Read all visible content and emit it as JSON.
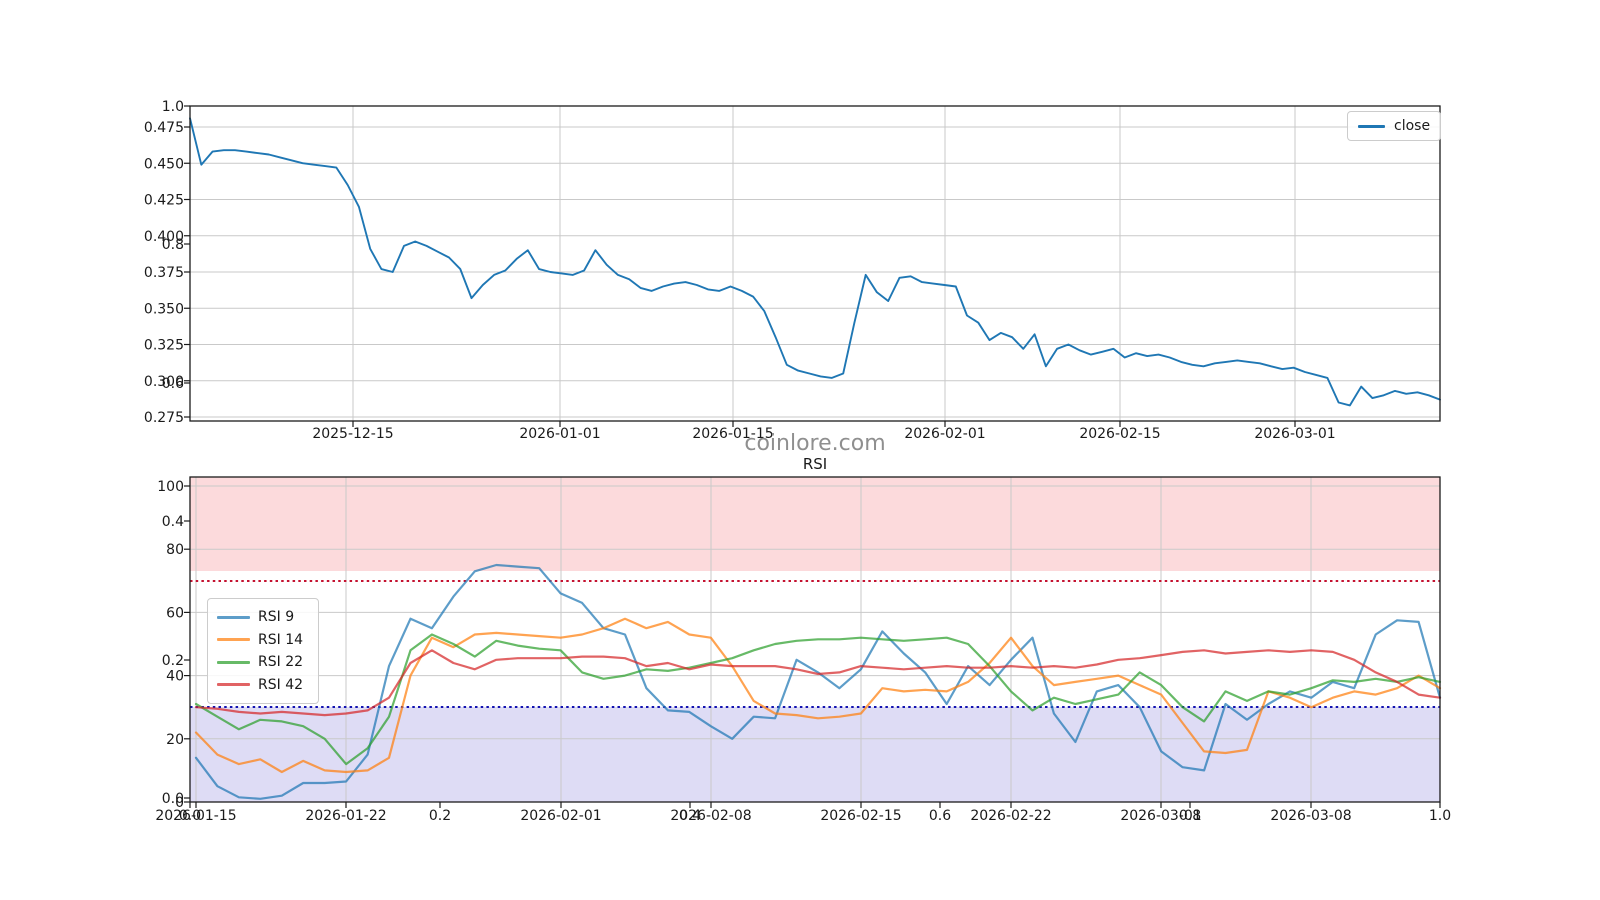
{
  "watermark": "coinlore.com",
  "colors": {
    "background": "#ffffff",
    "grid": "#c9c9c9",
    "spine": "#1b1b1b",
    "tick_text": "#1a1a1a",
    "watermark_text": "#8f8f8f",
    "overbought_band": "#fcdadc",
    "oversold_band": "#dedcf5",
    "overbought_line": "#c41230",
    "oversold_line": "#1212b0"
  },
  "phantom_axis": {
    "y_labels": [
      "1.0",
      "0.8",
      "0.6",
      "0.4",
      "0.2",
      "0.0"
    ],
    "x_labels": [
      "0.0",
      "0.2",
      "0.4",
      "0.6",
      "0.8",
      "1.0"
    ]
  },
  "chart_data": [
    {
      "type": "line",
      "title": "",
      "xlabel": "",
      "ylabel": "",
      "grid": true,
      "legend_position": "upper right",
      "ylim": [
        0.2723,
        0.4895
      ],
      "y_tick_labels": [
        "0.475",
        "0.450",
        "0.425",
        "0.400",
        "0.375",
        "0.350",
        "0.325",
        "0.300",
        "0.275"
      ],
      "x_tick_labels": [
        "2025-12-15",
        "2026-01-01",
        "2026-01-15",
        "2026-02-01",
        "2026-02-15",
        "2026-03-01"
      ],
      "series": [
        {
          "name": "close",
          "color": "#1f77b4",
          "values": [
            0.481,
            0.449,
            0.458,
            0.459,
            0.459,
            0.458,
            0.457,
            0.456,
            0.454,
            0.452,
            0.45,
            0.449,
            0.448,
            0.447,
            0.435,
            0.42,
            0.391,
            0.377,
            0.375,
            0.393,
            0.396,
            0.393,
            0.389,
            0.385,
            0.377,
            0.357,
            0.366,
            0.373,
            0.376,
            0.384,
            0.39,
            0.377,
            0.375,
            0.374,
            0.373,
            0.376,
            0.39,
            0.38,
            0.373,
            0.37,
            0.364,
            0.362,
            0.365,
            0.367,
            0.368,
            0.366,
            0.363,
            0.362,
            0.365,
            0.362,
            0.358,
            0.348,
            0.33,
            0.311,
            0.307,
            0.305,
            0.303,
            0.302,
            0.305,
            0.34,
            0.373,
            0.361,
            0.355,
            0.371,
            0.372,
            0.368,
            0.367,
            0.366,
            0.365,
            0.345,
            0.34,
            0.328,
            0.333,
            0.33,
            0.322,
            0.332,
            0.31,
            0.322,
            0.325,
            0.321,
            0.318,
            0.32,
            0.322,
            0.316,
            0.319,
            0.317,
            0.318,
            0.316,
            0.313,
            0.311,
            0.31,
            0.312,
            0.313,
            0.314,
            0.313,
            0.312,
            0.31,
            0.308,
            0.309,
            0.306,
            0.304,
            0.302,
            0.285,
            0.283,
            0.296,
            0.288,
            0.29,
            0.293,
            0.291,
            0.292,
            0.29,
            0.287
          ]
        }
      ]
    },
    {
      "type": "line",
      "title": "RSI",
      "xlabel": "",
      "ylabel": "",
      "grid": true,
      "legend_position": "center left",
      "ylim": [
        0,
        100
      ],
      "overbought_level": 70,
      "oversold_level": 30,
      "y_tick_labels": [
        "100",
        "80",
        "60",
        "40",
        "20",
        "0"
      ],
      "x_tick_labels": [
        "2026-01-15",
        "2026-01-22",
        "2026-02-01",
        "2026-02-08",
        "2026-02-15",
        "2026-02-22",
        "2026-03-01",
        "2026-03-08"
      ],
      "series": [
        {
          "name": "RSI 9",
          "color": "#1f77b4",
          "values": [
            14,
            5,
            1.5,
            1,
            2,
            6,
            6,
            6.5,
            15,
            43,
            58,
            55,
            65,
            73,
            75,
            74.5,
            74,
            66,
            63,
            55,
            53,
            36,
            29,
            28.5,
            24,
            20,
            27,
            26.5,
            45,
            41,
            36,
            42,
            54,
            47,
            41,
            31,
            43,
            37,
            45,
            52,
            28,
            19,
            35,
            37,
            30,
            16,
            11,
            10,
            31,
            26,
            31,
            35,
            33,
            38,
            36,
            53,
            57.5,
            57,
            33
          ]
        },
        {
          "name": "RSI 14",
          "color": "#ff7f0e",
          "values": [
            22,
            15,
            12,
            13.5,
            9.5,
            13,
            10,
            9.5,
            10,
            14,
            40,
            52,
            49,
            53,
            53.5,
            53,
            52.5,
            52,
            53,
            55,
            58,
            55,
            57,
            53,
            52,
            43,
            32,
            28,
            27.5,
            26.5,
            27,
            28,
            36,
            35,
            35.5,
            35,
            38,
            44,
            52,
            43,
            37,
            38,
            39,
            40,
            37,
            34,
            25,
            16,
            15.5,
            16.5,
            35,
            33,
            30,
            33,
            35,
            34,
            36,
            40,
            36
          ]
        },
        {
          "name": "RSI 22",
          "color": "#2ca02c",
          "values": [
            31,
            27,
            23,
            26,
            25.5,
            24,
            20,
            12,
            17,
            27,
            48,
            53,
            50,
            46,
            51,
            49.5,
            48.5,
            48,
            41,
            39,
            40,
            42,
            41.5,
            42.5,
            44,
            45.5,
            48,
            50,
            51,
            51.5,
            51.5,
            52,
            51.5,
            51,
            51.5,
            52,
            50,
            43,
            35,
            29,
            33,
            31,
            32.5,
            34,
            41,
            37,
            30,
            25.5,
            35,
            32,
            35,
            34,
            36,
            38.5,
            38,
            39,
            38,
            39.5,
            38
          ]
        },
        {
          "name": "RSI 42",
          "color": "#d62728",
          "values": [
            30,
            29.5,
            28.5,
            28,
            28.5,
            28,
            27.5,
            28,
            29,
            33,
            44,
            48,
            44,
            42,
            45,
            45.5,
            45.5,
            45.5,
            46,
            46,
            45.5,
            43,
            44,
            42,
            43.5,
            43,
            43,
            43,
            42,
            40.5,
            41,
            43,
            42.5,
            42,
            42.5,
            43,
            42.5,
            42.5,
            43,
            42.5,
            43,
            42.5,
            43.5,
            45,
            45.5,
            46.5,
            47.5,
            48,
            47,
            47.5,
            48,
            47.5,
            48,
            47.5,
            45,
            41,
            38,
            34,
            33
          ]
        }
      ]
    }
  ]
}
